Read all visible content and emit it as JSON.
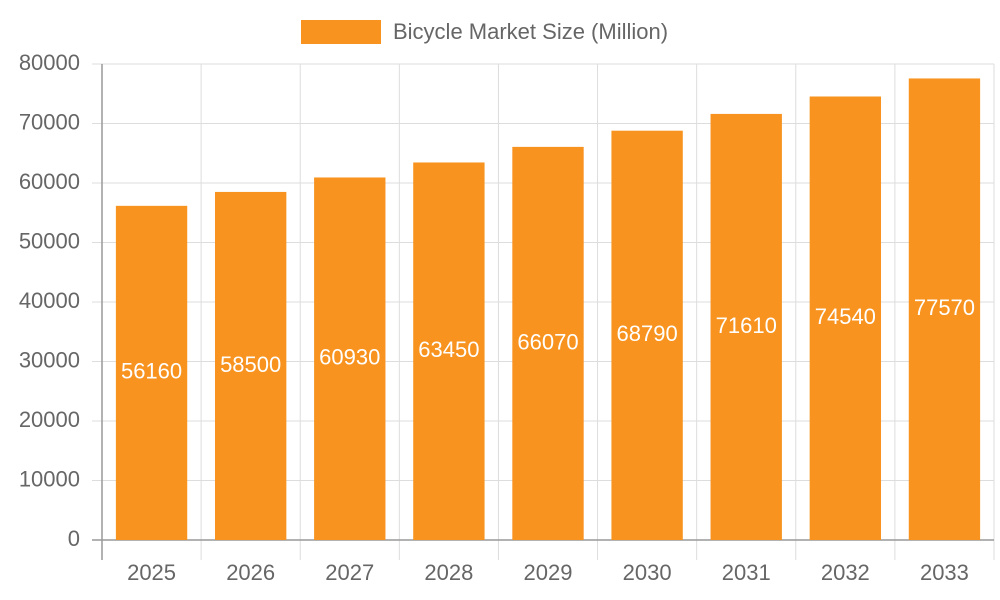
{
  "chart_data": {
    "type": "bar",
    "categories": [
      "2025",
      "2026",
      "2027",
      "2028",
      "2029",
      "2030",
      "2031",
      "2032",
      "2033"
    ],
    "series": [
      {
        "name": "Bicycle Market Size (Million)",
        "color": "#f7931e",
        "values": [
          56160,
          58500,
          60930,
          63450,
          66070,
          68790,
          71610,
          74540,
          77570
        ]
      }
    ],
    "ylim": [
      0,
      80000
    ],
    "yticks": [
      0,
      10000,
      20000,
      30000,
      40000,
      50000,
      60000,
      70000,
      80000
    ],
    "grid": true,
    "legend": "top"
  }
}
